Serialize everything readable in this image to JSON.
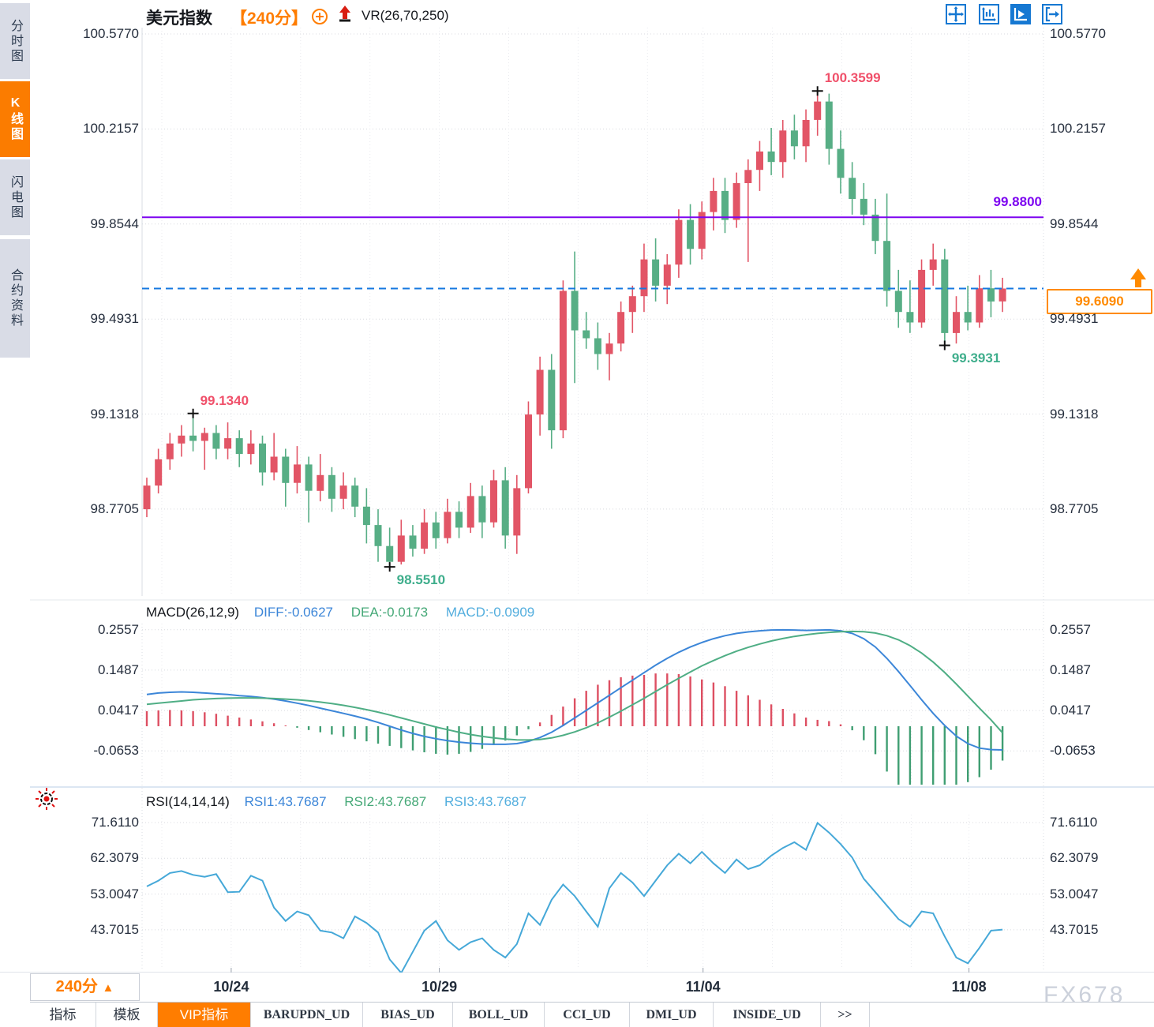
{
  "sidebar": {
    "items": [
      {
        "label": "分时图",
        "active": false
      },
      {
        "label": "K线图",
        "active": true
      },
      {
        "label": "闪电图",
        "active": false
      },
      {
        "label": "合约资料",
        "active": false
      }
    ]
  },
  "header": {
    "symbol": "美元指数",
    "period": "【240分】",
    "overlay_indicator": "VR(26,70,250)"
  },
  "toolbar": {
    "icons": [
      {
        "name": "crosshair-move-icon",
        "active": false
      },
      {
        "name": "axis-scale-icon",
        "active": false
      },
      {
        "name": "axis-play-icon",
        "active": true
      },
      {
        "name": "pan-exit-icon",
        "active": false
      }
    ]
  },
  "price_axis": {
    "labels": [
      "100.5770",
      "100.2157",
      "99.8544",
      "99.4931",
      "99.1318",
      "98.7705"
    ]
  },
  "macd_panel": {
    "title": "MACD(26,12,9)",
    "diff_label": "DIFF:-0.0627",
    "dea_label": "DEA:-0.0173",
    "macd_label": "MACD:-0.0909",
    "axis_labels": [
      "0.2557",
      "0.1487",
      "0.0417",
      "-0.0653"
    ]
  },
  "rsi_panel": {
    "title": "RSI(14,14,14)",
    "rsi1_label": "RSI1:43.7687",
    "rsi2_label": "RSI2:43.7687",
    "rsi3_label": "RSI3:43.7687",
    "axis_labels": [
      "71.6110",
      "62.3079",
      "53.0047",
      "43.7015"
    ]
  },
  "price_tag": {
    "value": "99.6090"
  },
  "hline_label": {
    "value": "99.8800"
  },
  "footer": {
    "period_button": "240分",
    "period_arrow": "▲",
    "watermark": "FX678"
  },
  "tabs": {
    "items": [
      {
        "label": "指标",
        "active": false,
        "latin": false
      },
      {
        "label": "模板",
        "active": false,
        "latin": false
      },
      {
        "label": "VIP指标",
        "active": true,
        "latin": false
      },
      {
        "label": "BARUPDN_UD",
        "active": false,
        "latin": true
      },
      {
        "label": "BIAS_UD",
        "active": false,
        "latin": true
      },
      {
        "label": "BOLL_UD",
        "active": false,
        "latin": true
      },
      {
        "label": "CCI_UD",
        "active": false,
        "latin": true
      },
      {
        "label": "DMI_UD",
        "active": false,
        "latin": true
      },
      {
        "label": "INSIDE_UD",
        "active": false,
        "latin": true
      },
      {
        "label": ">>",
        "active": false,
        "latin": true
      }
    ]
  },
  "colors": {
    "up": "#e25566",
    "down": "#57ae85",
    "accent_orange": "#ff7d00",
    "purple_line": "#7d05f0",
    "dashed_blue": "#1678e0",
    "diff_line": "#3c86d8",
    "dea_line": "#4fae85",
    "rsi_line": "#45a8d8",
    "grid": "#d8dadf"
  },
  "chart_data": {
    "type": "candlestick",
    "title": "美元指数 240分",
    "ylim": [
      98.45,
      100.65
    ],
    "y_ticks": [
      100.577,
      100.2157,
      99.8544,
      99.4931,
      99.1318,
      98.7705
    ],
    "x_dates": [
      {
        "label": "10/24",
        "index": 7.3
      },
      {
        "label": "10/29",
        "index": 25.3
      },
      {
        "label": "11/04",
        "index": 48.1
      },
      {
        "label": "11/08",
        "index": 71.1
      }
    ],
    "vline_indexes": [
      1.3,
      7.3,
      13.3,
      19.3,
      25.3,
      31.3,
      37.3,
      43.3,
      48.1,
      54.1,
      60.1,
      66.1,
      71.1
    ],
    "hlines": [
      {
        "value": 99.88,
        "style": "solid",
        "color": "#7d05f0"
      },
      {
        "value": 99.609,
        "style": "dashed",
        "color": "#1678e0"
      }
    ],
    "annotations": [
      {
        "text": "99.1340",
        "index": 4,
        "price": 99.134,
        "side": "above",
        "color": "#f0506a"
      },
      {
        "text": "98.5510",
        "index": 21,
        "price": 98.551,
        "side": "below",
        "color": "#3fae8c"
      },
      {
        "text": "100.3599",
        "index": 58,
        "price": 100.3599,
        "side": "above",
        "color": "#f0506a"
      },
      {
        "text": "99.3931",
        "index": 69,
        "price": 99.3931,
        "side": "below",
        "color": "#3fae8c"
      }
    ],
    "candles_ohlc": [
      [
        98.77,
        98.89,
        98.74,
        98.86
      ],
      [
        98.86,
        99.0,
        98.83,
        98.96
      ],
      [
        98.96,
        99.06,
        98.92,
        99.02
      ],
      [
        99.02,
        99.09,
        98.97,
        99.05
      ],
      [
        99.05,
        99.134,
        98.99,
        99.03
      ],
      [
        99.03,
        99.08,
        98.92,
        99.06
      ],
      [
        99.06,
        99.09,
        98.96,
        99.0
      ],
      [
        99.0,
        99.1,
        98.96,
        99.04
      ],
      [
        99.04,
        99.07,
        98.93,
        98.98
      ],
      [
        98.98,
        99.07,
        98.94,
        99.02
      ],
      [
        99.02,
        99.05,
        98.86,
        98.91
      ],
      [
        98.91,
        99.06,
        98.88,
        98.97
      ],
      [
        98.97,
        99.0,
        98.78,
        98.87
      ],
      [
        98.87,
        99.01,
        98.83,
        98.94
      ],
      [
        98.94,
        98.97,
        98.72,
        98.84
      ],
      [
        98.84,
        98.98,
        98.8,
        98.9
      ],
      [
        98.9,
        98.93,
        98.76,
        98.81
      ],
      [
        98.81,
        98.91,
        98.77,
        98.86
      ],
      [
        98.86,
        98.89,
        98.74,
        98.78
      ],
      [
        98.78,
        98.85,
        98.64,
        98.71
      ],
      [
        98.71,
        98.77,
        98.57,
        98.63
      ],
      [
        98.63,
        98.7,
        98.551,
        98.57
      ],
      [
        98.57,
        98.73,
        98.56,
        98.67
      ],
      [
        98.67,
        98.71,
        98.59,
        98.62
      ],
      [
        98.62,
        98.77,
        98.6,
        98.72
      ],
      [
        98.72,
        98.76,
        98.62,
        98.66
      ],
      [
        98.66,
        98.81,
        98.64,
        98.76
      ],
      [
        98.76,
        98.8,
        98.66,
        98.7
      ],
      [
        98.7,
        98.87,
        98.68,
        98.82
      ],
      [
        98.82,
        98.86,
        98.66,
        98.72
      ],
      [
        98.72,
        98.92,
        98.7,
        98.88
      ],
      [
        98.88,
        98.93,
        98.62,
        98.67
      ],
      [
        98.67,
        98.9,
        98.6,
        98.85
      ],
      [
        98.85,
        99.18,
        98.83,
        99.13
      ],
      [
        99.13,
        99.35,
        99.05,
        99.3
      ],
      [
        99.3,
        99.36,
        99.0,
        99.07
      ],
      [
        99.07,
        99.64,
        99.04,
        99.6
      ],
      [
        99.6,
        99.75,
        99.25,
        99.45
      ],
      [
        99.45,
        99.52,
        99.38,
        99.42
      ],
      [
        99.42,
        99.48,
        99.3,
        99.36
      ],
      [
        99.36,
        99.44,
        99.26,
        99.4
      ],
      [
        99.4,
        99.56,
        99.37,
        99.52
      ],
      [
        99.52,
        99.62,
        99.44,
        99.58
      ],
      [
        99.58,
        99.78,
        99.52,
        99.72
      ],
      [
        99.72,
        99.8,
        99.56,
        99.62
      ],
      [
        99.62,
        99.74,
        99.55,
        99.7
      ],
      [
        99.7,
        99.91,
        99.65,
        99.87
      ],
      [
        99.87,
        99.93,
        99.7,
        99.76
      ],
      [
        99.76,
        99.94,
        99.72,
        99.9
      ],
      [
        99.9,
        100.03,
        99.83,
        99.98
      ],
      [
        99.98,
        100.03,
        99.82,
        99.87
      ],
      [
        99.87,
        100.05,
        99.84,
        100.01
      ],
      [
        100.01,
        100.1,
        99.71,
        100.06
      ],
      [
        100.06,
        100.17,
        99.98,
        100.13
      ],
      [
        100.13,
        100.22,
        100.04,
        100.09
      ],
      [
        100.09,
        100.25,
        100.03,
        100.21
      ],
      [
        100.21,
        100.27,
        100.1,
        100.15
      ],
      [
        100.15,
        100.29,
        100.09,
        100.25
      ],
      [
        100.25,
        100.3599,
        100.19,
        100.32
      ],
      [
        100.32,
        100.35,
        100.08,
        100.14
      ],
      [
        100.14,
        100.21,
        99.97,
        100.03
      ],
      [
        100.03,
        100.09,
        99.89,
        99.95
      ],
      [
        99.95,
        100.01,
        99.85,
        99.89
      ],
      [
        99.89,
        99.95,
        99.74,
        99.79
      ],
      [
        99.79,
        99.97,
        99.54,
        99.6
      ],
      [
        99.6,
        99.68,
        99.46,
        99.52
      ],
      [
        99.52,
        99.64,
        99.44,
        99.48
      ],
      [
        99.48,
        99.72,
        99.46,
        99.68
      ],
      [
        99.68,
        99.78,
        99.62,
        99.72
      ],
      [
        99.72,
        99.76,
        99.3931,
        99.44
      ],
      [
        99.44,
        99.58,
        99.4,
        99.52
      ],
      [
        99.52,
        99.62,
        99.45,
        99.48
      ],
      [
        99.48,
        99.66,
        99.46,
        99.61
      ],
      [
        99.61,
        99.68,
        99.5,
        99.56
      ],
      [
        99.56,
        99.65,
        99.52,
        99.609
      ]
    ],
    "macd": {
      "params": [
        26,
        12,
        9
      ],
      "current": {
        "diff": -0.0627,
        "dea": -0.0173,
        "macd": -0.0909
      },
      "y_ticks": [
        0.2557,
        0.1487,
        0.0417,
        -0.0653
      ],
      "diff": [
        0.084,
        0.088,
        0.09,
        0.091,
        0.09,
        0.088,
        0.086,
        0.084,
        0.081,
        0.079,
        0.076,
        0.072,
        0.067,
        0.061,
        0.055,
        0.048,
        0.041,
        0.034,
        0.027,
        0.019,
        0.01,
        0.0,
        -0.01,
        -0.019,
        -0.027,
        -0.033,
        -0.038,
        -0.042,
        -0.045,
        -0.047,
        -0.048,
        -0.048,
        -0.046,
        -0.04,
        -0.03,
        -0.016,
        0.002,
        0.022,
        0.042,
        0.062,
        0.082,
        0.102,
        0.122,
        0.142,
        0.162,
        0.18,
        0.196,
        0.21,
        0.222,
        0.232,
        0.24,
        0.246,
        0.25,
        0.253,
        0.255,
        0.2555,
        0.255,
        0.254,
        0.2545,
        0.2555,
        0.253,
        0.246,
        0.232,
        0.21,
        0.18,
        0.145,
        0.108,
        0.07,
        0.034,
        0.002,
        -0.026,
        -0.046,
        -0.058,
        -0.062,
        -0.0627
      ],
      "dea": [
        0.058,
        0.061,
        0.064,
        0.067,
        0.07,
        0.072,
        0.0735,
        0.0745,
        0.075,
        0.075,
        0.0745,
        0.0735,
        0.072,
        0.07,
        0.0675,
        0.064,
        0.06,
        0.0555,
        0.05,
        0.044,
        0.0375,
        0.03,
        0.022,
        0.014,
        0.006,
        -0.002,
        -0.009,
        -0.016,
        -0.022,
        -0.027,
        -0.031,
        -0.034,
        -0.036,
        -0.0365,
        -0.035,
        -0.031,
        -0.024,
        -0.015,
        -0.004,
        0.009,
        0.024,
        0.04,
        0.057,
        0.074,
        0.092,
        0.11,
        0.127,
        0.144,
        0.16,
        0.174,
        0.187,
        0.199,
        0.209,
        0.218,
        0.226,
        0.2325,
        0.238,
        0.2425,
        0.246,
        0.2487,
        0.2505,
        0.2513,
        0.2505,
        0.247,
        0.24,
        0.229,
        0.2135,
        0.194,
        0.17,
        0.1425,
        0.112,
        0.08,
        0.048,
        0.017,
        -0.0173
      ],
      "hist": [
        0.04,
        0.042,
        0.043,
        0.042,
        0.04,
        0.037,
        0.033,
        0.028,
        0.023,
        0.018,
        0.013,
        0.008,
        0.002,
        -0.004,
        -0.01,
        -0.016,
        -0.022,
        -0.028,
        -0.034,
        -0.04,
        -0.046,
        -0.052,
        -0.058,
        -0.064,
        -0.069,
        -0.073,
        -0.075,
        -0.073,
        -0.068,
        -0.06,
        -0.05,
        -0.038,
        -0.024,
        -0.008,
        0.01,
        0.03,
        0.052,
        0.074,
        0.094,
        0.11,
        0.122,
        0.13,
        0.134,
        0.136,
        0.14,
        0.14,
        0.138,
        0.132,
        0.124,
        0.116,
        0.106,
        0.094,
        0.082,
        0.07,
        0.058,
        0.046,
        0.034,
        0.023,
        0.017,
        0.0136,
        0.005,
        -0.0106,
        -0.037,
        -0.074,
        -0.12,
        -0.168,
        -0.17,
        -0.172,
        -0.17,
        -0.165,
        -0.158,
        -0.148,
        -0.135,
        -0.115,
        -0.0909
      ]
    },
    "rsi": {
      "params": [
        14,
        14,
        14
      ],
      "current": {
        "rsi1": 43.7687,
        "rsi2": 43.7687,
        "rsi3": 43.7687
      },
      "y_ticks": [
        71.611,
        62.3079,
        53.0047,
        43.7015
      ],
      "values": [
        55,
        56.5,
        58.5,
        59,
        58,
        57.5,
        58.2,
        53.5,
        53.6,
        57.8,
        56.5,
        49.5,
        46,
        48.5,
        47.5,
        43.5,
        43,
        41.5,
        47.2,
        45.5,
        43,
        36,
        32.5,
        38,
        43.5,
        46,
        41,
        38.5,
        40.5,
        41.5,
        38.5,
        36.5,
        40,
        48,
        45,
        51.5,
        55.5,
        52.5,
        48.5,
        44.5,
        54.5,
        58.5,
        56,
        52.5,
        56.5,
        60.5,
        63.5,
        61,
        64,
        61,
        58.5,
        62,
        59.5,
        60.5,
        63,
        65,
        66.5,
        64.5,
        71.5,
        69,
        66,
        62.5,
        57,
        53.5,
        50,
        46.5,
        44.5,
        48.5,
        48,
        42,
        36.5,
        35,
        39,
        43.5,
        43.77
      ]
    }
  }
}
